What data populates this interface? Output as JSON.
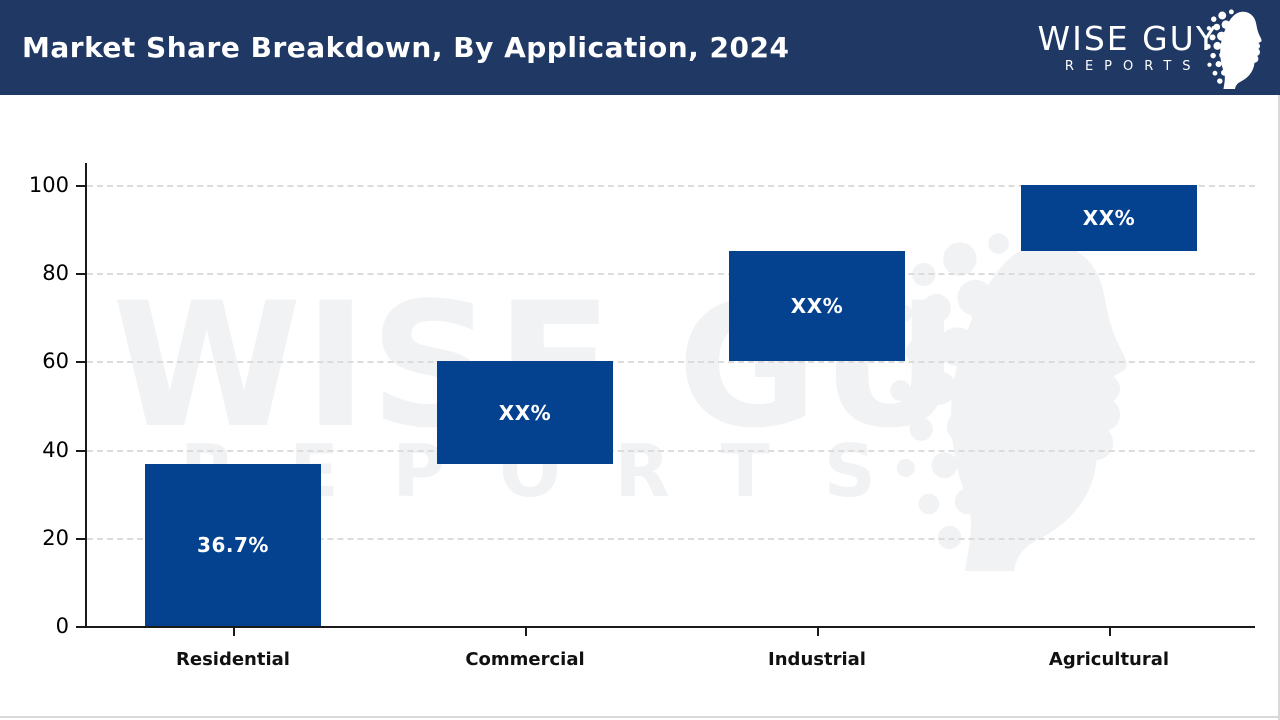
{
  "header": {
    "title": "Market Share Breakdown, By Application, 2024",
    "logo": {
      "wordmark": "WISE GUY",
      "subtitle": "REPORTS"
    }
  },
  "watermark": {
    "wordmark": "WISE GUY",
    "subtitle": "REPORTS"
  },
  "chart_data": {
    "type": "bar",
    "variant": "waterfall",
    "title": "Market Share Breakdown, By Application, 2024",
    "categories": [
      "Residential",
      "Commercial",
      "Industrial",
      "Agricultural"
    ],
    "segments": [
      {
        "category": "Residential",
        "start": 0,
        "end": 36.7,
        "label": "36.7%"
      },
      {
        "category": "Commercial",
        "start": 36.7,
        "end": 60,
        "label": "XX%"
      },
      {
        "category": "Industrial",
        "start": 60,
        "end": 85,
        "label": "XX%"
      },
      {
        "category": "Agricultural",
        "start": 85,
        "end": 100,
        "label": "XX%"
      }
    ],
    "yticks": [
      0,
      20,
      40,
      60,
      80,
      100
    ],
    "ylim": [
      0,
      105
    ],
    "xlabel": "",
    "ylabel": "",
    "grid": "horizontal-dashed",
    "legend": "none",
    "colors": {
      "bar": "#04418F",
      "bar_label": "#FFFFFF",
      "header_bg": "#1F3864",
      "header_text": "#FFFFFF",
      "grid": "#DCDCDC",
      "axis": "#1A1A1A",
      "watermark": "#F1F2F4",
      "frame": "#D9D9D9"
    }
  }
}
